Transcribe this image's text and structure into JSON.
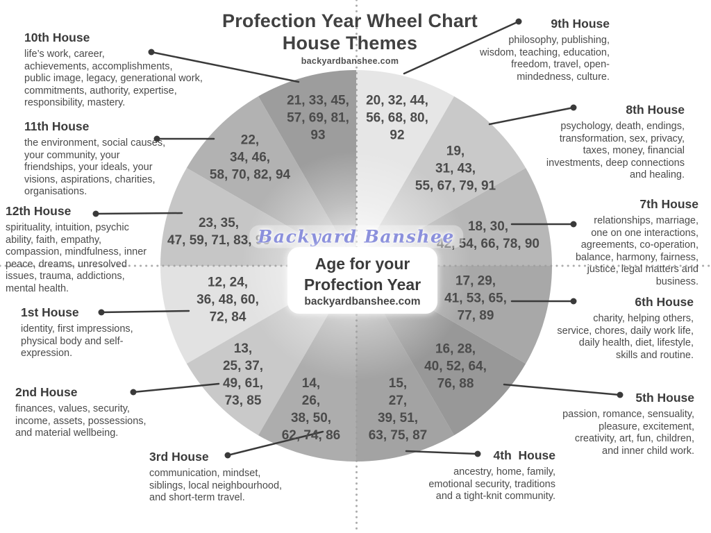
{
  "title": {
    "line1": "Profection Year Wheel Chart",
    "line2": "House Themes",
    "website": "backyardbanshee.com"
  },
  "center": {
    "watermark": "Backyard Banshee",
    "label_line1": "Age for your",
    "label_line2": "Profection Year",
    "website": "backyardbanshee.com"
  },
  "colors": {
    "heading_text": "#3b3b3b",
    "body_text": "#4a4a4a",
    "number_text": "#4b4b4b",
    "leader_line": "#3a3a3a",
    "dotted_line": "#9e9e9e",
    "watermark_purple": "#8b90dc",
    "center_box_background": "#ffffff"
  },
  "houses": [
    {
      "id": "1st",
      "name": "1st House",
      "segment_color": "#e2e2e2",
      "ages": [
        "12, 24,",
        "36, 48, 60,",
        "72, 84"
      ],
      "description": "identity, first impressions,\nphysical body and self-\nexpression."
    },
    {
      "id": "2nd",
      "name": "2nd House",
      "segment_color": "#c9c9c9",
      "ages": [
        "13,",
        "25, 37,",
        "49, 61,",
        "73, 85"
      ],
      "description": "finances, values, security,\nincome, assets, possessions,\nand material wellbeing."
    },
    {
      "id": "3rd",
      "name": "3rd House",
      "segment_color": "#adadad",
      "ages": [
        "14,",
        "26,",
        "38, 50,",
        "62, 74, 86"
      ],
      "description": "communication, mindset,\nsiblings, local neighbourhood,\nand short-term travel."
    },
    {
      "id": "4th",
      "name": "4th  House",
      "segment_color": "#a3a3a3",
      "ages": [
        "15,",
        "27,",
        "39, 51,",
        "63, 75, 87"
      ],
      "description": "ancestry, home, family,\nemotional security, traditions\nand a tight-knit community."
    },
    {
      "id": "5th",
      "name": "5th House",
      "segment_color": "#989898",
      "ages": [
        "16, 28,",
        "40, 52, 64,",
        "76, 88"
      ],
      "description": "passion, romance, sensuality,\npleasure, excitement,\ncreativity, art, fun, children,\nand inner child work."
    },
    {
      "id": "6th",
      "name": "6th House",
      "segment_color": "#a8a8a8",
      "ages": [
        "17, 29,",
        "41, 53, 65,",
        "77, 89"
      ],
      "description": "charity, helping others,\nservice, chores, daily work life,\ndaily health, diet, lifestyle,\nskills and routine."
    },
    {
      "id": "7th",
      "name": "7th House",
      "segment_color": "#b7b7b7",
      "ages": [
        "18, 30,",
        "42, 54, 66, 78, 90"
      ],
      "description": "relationships, marriage,\none on one interactions,\nagreements, co-operation,\nbalance, harmony, fairness,\njustice, legal matters and\nbusiness."
    },
    {
      "id": "8th",
      "name": "8th House",
      "segment_color": "#c9c9c9",
      "ages": [
        "19,",
        "31, 43,",
        "55, 67, 79, 91"
      ],
      "description": "psychology, death, endings,\ntransformation, sex, privacy,\ntaxes, money, financial\ninvestments, deep connections\nand healing."
    },
    {
      "id": "9th",
      "name": "9th House",
      "segment_color": "#e6e6e6",
      "ages": [
        "20, 32, 44,",
        "56, 68, 80,",
        "92"
      ],
      "description": "philosophy, publishing,\nwisdom, teaching, education,\nfreedom, travel, open-\nmindedness, culture."
    },
    {
      "id": "10th",
      "name": "10th House",
      "segment_color": "#9d9d9d",
      "ages": [
        "21, 33, 45,",
        "57, 69, 81,",
        "93"
      ],
      "description": "life’s work, career,\nachievements, accomplishments,\npublic image, legacy, generational work,\ncommitments, authority, expertise,\nresponsibility, mastery."
    },
    {
      "id": "11th",
      "name": "11th House",
      "segment_color": "#b2b2b2",
      "ages": [
        "22,",
        "34, 46,",
        "58, 70, 82, 94"
      ],
      "description": "the environment, social causes,\nyour community, your\nfriendships, your ideals, your\nvisions, aspirations, charities,\norganisations."
    },
    {
      "id": "12th",
      "name": "12th House",
      "segment_color": "#c6c6c6",
      "ages": [
        "23, 35,",
        "47, 59, 71, 83, 95"
      ],
      "description": "spirituality, intuition, psychic\nability, faith, empathy,\ncompassion, mindfulness, inner\npeace, dreams, unresolved\nissues, trauma, addictions,\nmental health."
    }
  ]
}
